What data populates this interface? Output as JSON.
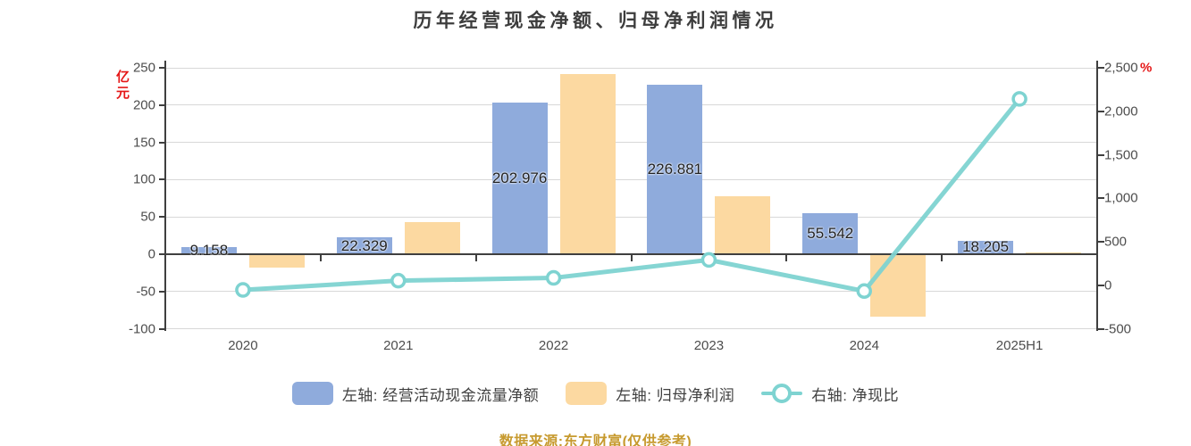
{
  "title": "历年经营现金净额、归母净利润情况",
  "footer": "数据来源:东方财富(仅供参考)",
  "legend": [
    "左轴: 经营活动现金流量净额",
    "左轴: 归母净利润",
    "右轴: 净现比"
  ],
  "chart_data": {
    "type": "bar+line combo, dual axis",
    "categories": [
      "2020",
      "2021",
      "2022",
      "2023",
      "2024",
      "2025H1"
    ],
    "left_axis": {
      "unit": "亿元",
      "min": -100,
      "max": 250,
      "tick_values": [
        250,
        200,
        150,
        100,
        50,
        0,
        -50,
        -100
      ],
      "tick_labels": [
        "250",
        "200",
        "150",
        "100",
        "50",
        "0",
        "-50",
        "-100"
      ]
    },
    "right_axis": {
      "unit": "%",
      "min": -500,
      "max": 2500,
      "tick_values": [
        2500,
        2000,
        1500,
        1000,
        500,
        0,
        -500
      ],
      "tick_labels": [
        "2,500",
        "2,000",
        "1,500",
        "1,000",
        "500",
        "0",
        "-500"
      ]
    },
    "series": [
      {
        "name": "左轴: 经营活动现金流量净额",
        "type": "bar",
        "axis": "left",
        "color": "#8fabdc",
        "values": [
          9.158,
          22.329,
          202.976,
          226.881,
          55.542,
          18.205
        ],
        "value_labels": [
          "9.158",
          "22.329",
          "202.976",
          "226.881",
          "55.542",
          "18.205"
        ]
      },
      {
        "name": "左轴: 归母净利润",
        "type": "bar",
        "axis": "left",
        "color": "#fcd9a1",
        "values": [
          -17,
          43,
          242,
          78,
          -83,
          0.9
        ]
      },
      {
        "name": "右轴: 净现比",
        "type": "line",
        "axis": "right",
        "marker": "circle",
        "color": "#7ed3d1",
        "values": [
          -54,
          52,
          84,
          291,
          -67,
          2142
        ]
      }
    ],
    "grid": true,
    "legend_position": "bottom",
    "accent_color_units": "#e51717"
  }
}
